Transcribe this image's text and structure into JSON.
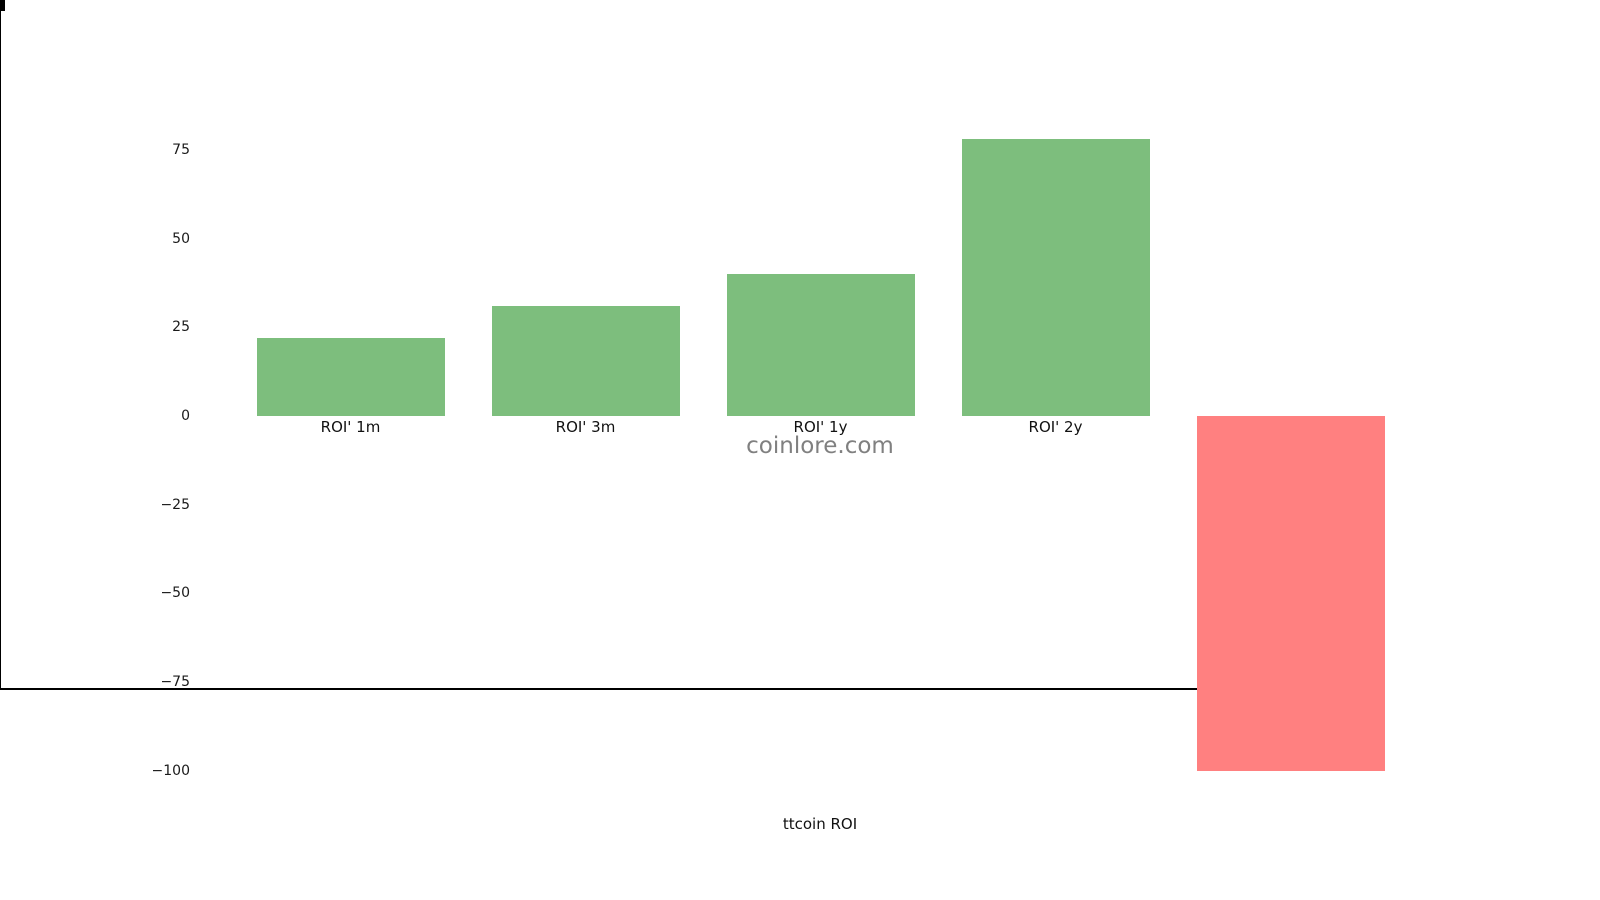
{
  "watermark": "coinlore.com",
  "chart_data": {
    "type": "bar",
    "title": "ttcoin ROI",
    "categories": [
      "ROI' 1m",
      "ROI' 3m",
      "ROI' 1y",
      "ROI' 2y",
      ""
    ],
    "values": [
      22,
      31,
      40,
      78,
      -100
    ],
    "bar_colors": [
      "#7dbe7d",
      "#7dbe7d",
      "#7dbe7d",
      "#7dbe7d",
      "#ff8080"
    ],
    "positive_color": "#7dbe7d",
    "negative_color": "#ff8080",
    "yticks": [
      75,
      50,
      25,
      0,
      -25,
      -50,
      -75,
      -100
    ],
    "ytick_labels": [
      "75",
      "50",
      "25",
      "0",
      "−25",
      "−50",
      "−75",
      "−100"
    ],
    "ylim": [
      -104,
      87
    ],
    "xlabel": "",
    "ylabel": "",
    "grid": false,
    "legend_position": "none",
    "watermark": "coinlore.com"
  }
}
